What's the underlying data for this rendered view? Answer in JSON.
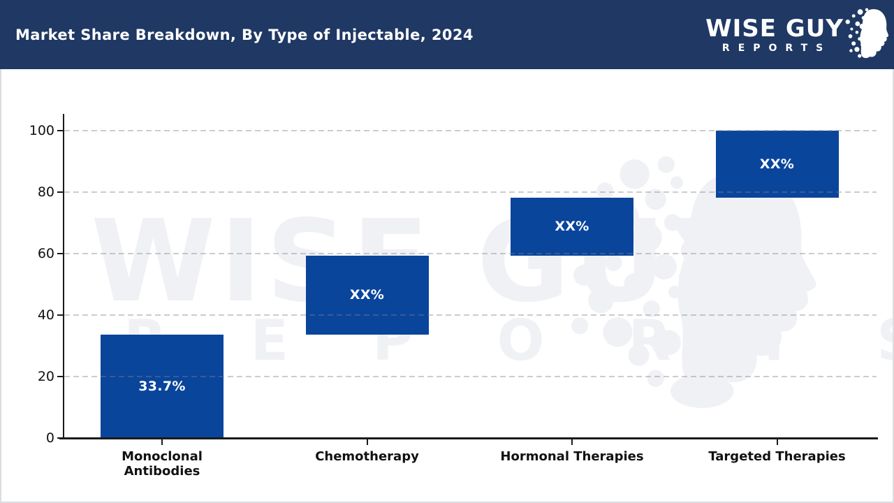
{
  "header": {
    "title": "Market Share Breakdown, By Type of Injectable, 2024",
    "logo": {
      "wordmark": "WISE GUY",
      "subtext": "REPORTS",
      "icon": "dotted-head-icon"
    }
  },
  "watermark": {
    "line1": "WISE GUY",
    "line2": "R E P O R T S"
  },
  "chart_data": {
    "type": "bar",
    "subtype": "waterfall",
    "title": "Market Share Breakdown, By Type of Injectable, 2024",
    "categories": [
      "Monoclonal\nAntibodies",
      "Chemotherapy",
      "Hormonal Therapies",
      "Targeted Therapies"
    ],
    "segments": [
      {
        "category": "Monoclonal Antibodies",
        "start": 0,
        "end": 33.7,
        "label": "33.7%"
      },
      {
        "category": "Chemotherapy",
        "start": 33.7,
        "end": 59.3,
        "label": "XX%"
      },
      {
        "category": "Hormonal Therapies",
        "start": 59.3,
        "end": 78.2,
        "label": "XX%"
      },
      {
        "category": "Targeted Therapies",
        "start": 78.2,
        "end": 100,
        "label": "XX%"
      }
    ],
    "yticks": [
      0,
      20,
      40,
      60,
      80,
      100
    ],
    "ylim": [
      0,
      105
    ],
    "xlabel": "",
    "ylabel": "",
    "grid": "horizontal-dashed",
    "legend": "none",
    "bar_color": "#0a459c",
    "bar_label_color": "#ffffff"
  },
  "colors": {
    "header_bg": "#1f3864",
    "bar": "#0a459c",
    "axis": "#1a1a1a",
    "watermark": "#f0f1f5"
  }
}
